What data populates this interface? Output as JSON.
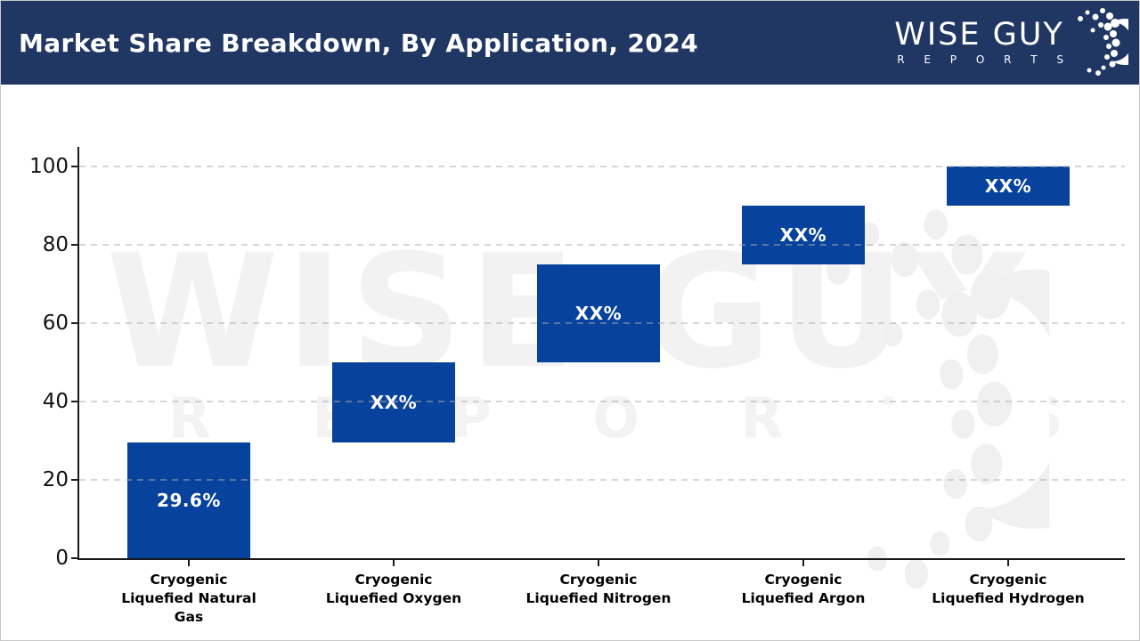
{
  "header": {
    "title": "Market Share Breakdown, By Application, 2024",
    "bg_color": "#213763",
    "logo": {
      "wordmark": "WISE GUY",
      "subtitle": "R E P O R T S"
    }
  },
  "watermark": {
    "line1": "WISE GUY",
    "line2": "R E P O R T S"
  },
  "chart_data": {
    "type": "bar",
    "subtype": "waterfall",
    "title": "Market Share Breakdown, By Application, 2024",
    "categories": [
      "Cryogenic Liquefied Natural Gas",
      "Cryogenic Liquefied Oxygen",
      "Cryogenic Liquefied Nitrogen",
      "Cryogenic Liquefied Argon",
      "Cryogenic Liquefied Hydrogen"
    ],
    "category_lines": [
      [
        "Cryogenic",
        "Liquefied Natural",
        "Gas"
      ],
      [
        "Cryogenic",
        "Liquefied Oxygen"
      ],
      [
        "Cryogenic",
        "Liquefied Nitrogen"
      ],
      [
        "Cryogenic",
        "Liquefied Argon"
      ],
      [
        "Cryogenic",
        "Liquefied Hydrogen"
      ]
    ],
    "segments": [
      {
        "category": "Cryogenic Liquefied Natural Gas",
        "start": 0,
        "end": 29.6,
        "label": "29.6%"
      },
      {
        "category": "Cryogenic Liquefied Oxygen",
        "start": 29.6,
        "end": 50,
        "label": "XX%"
      },
      {
        "category": "Cryogenic Liquefied Nitrogen",
        "start": 50,
        "end": 75,
        "label": "XX%"
      },
      {
        "category": "Cryogenic Liquefied Argon",
        "start": 75,
        "end": 90,
        "label": "XX%"
      },
      {
        "category": "Cryogenic Liquefied Hydrogen",
        "start": 90,
        "end": 100,
        "label": "XX%"
      }
    ],
    "yticks": [
      0,
      20,
      40,
      60,
      80,
      100
    ],
    "ytick_labels": [
      "0",
      "20",
      "40",
      "60",
      "80",
      "100"
    ],
    "ylim": [
      0,
      105
    ],
    "xlabel": "",
    "ylabel": "",
    "bar_color": "#07429c",
    "grid": "horizontal dashed",
    "legend_position": "none"
  }
}
